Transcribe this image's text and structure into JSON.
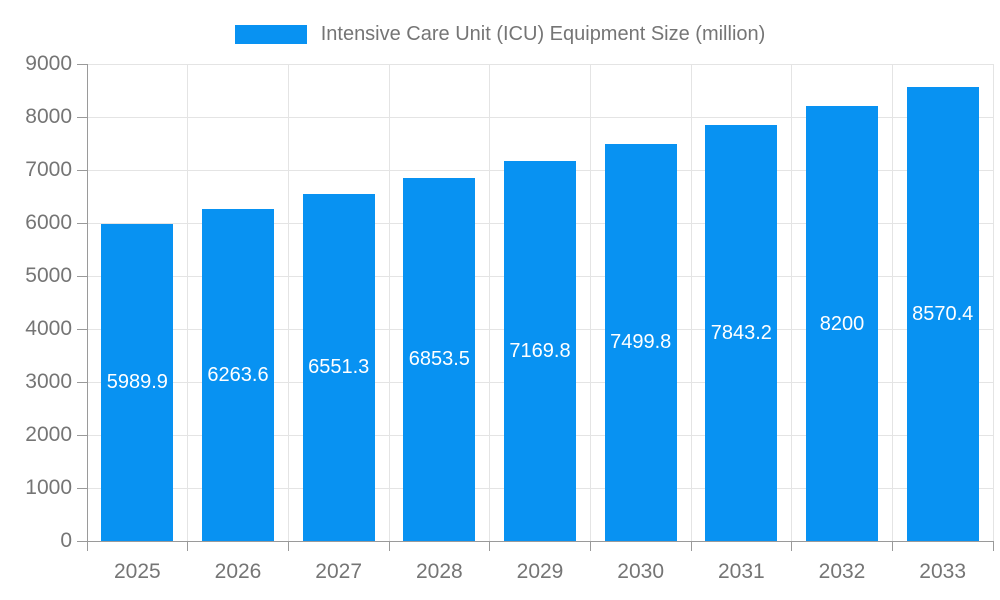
{
  "chart_data": {
    "type": "bar",
    "title": "",
    "legend": [
      {
        "label": "Intensive Care Unit (ICU) Equipment Size (million)"
      }
    ],
    "legend_position": "top",
    "categories": [
      "2025",
      "2026",
      "2027",
      "2028",
      "2029",
      "2030",
      "2031",
      "2032",
      "2033"
    ],
    "series": [
      {
        "name": "Intensive Care Unit (ICU) Equipment Size (million)",
        "values": [
          5989.9,
          6263.6,
          6551.3,
          6853.5,
          7169.8,
          7499.8,
          7843.2,
          8200,
          8570.4
        ],
        "data_labels": [
          "5989.9",
          "6263.6",
          "6551.3",
          "6853.5",
          "7169.8",
          "7499.8",
          "7843.2",
          "8200",
          "8570.4"
        ]
      }
    ],
    "xlabel": "",
    "ylabel": "",
    "ylim": [
      0,
      9000
    ],
    "y_ticks": [
      0,
      1000,
      2000,
      3000,
      4000,
      5000,
      6000,
      7000,
      8000,
      9000
    ],
    "grid": true,
    "colors": {
      "bar": "#0892F2",
      "grid": "#E4E4E4",
      "axis": "#9A9A9A",
      "tick_text": "#757575",
      "bar_label_text": "#FFFFFF",
      "background": "#FFFFFF"
    }
  }
}
